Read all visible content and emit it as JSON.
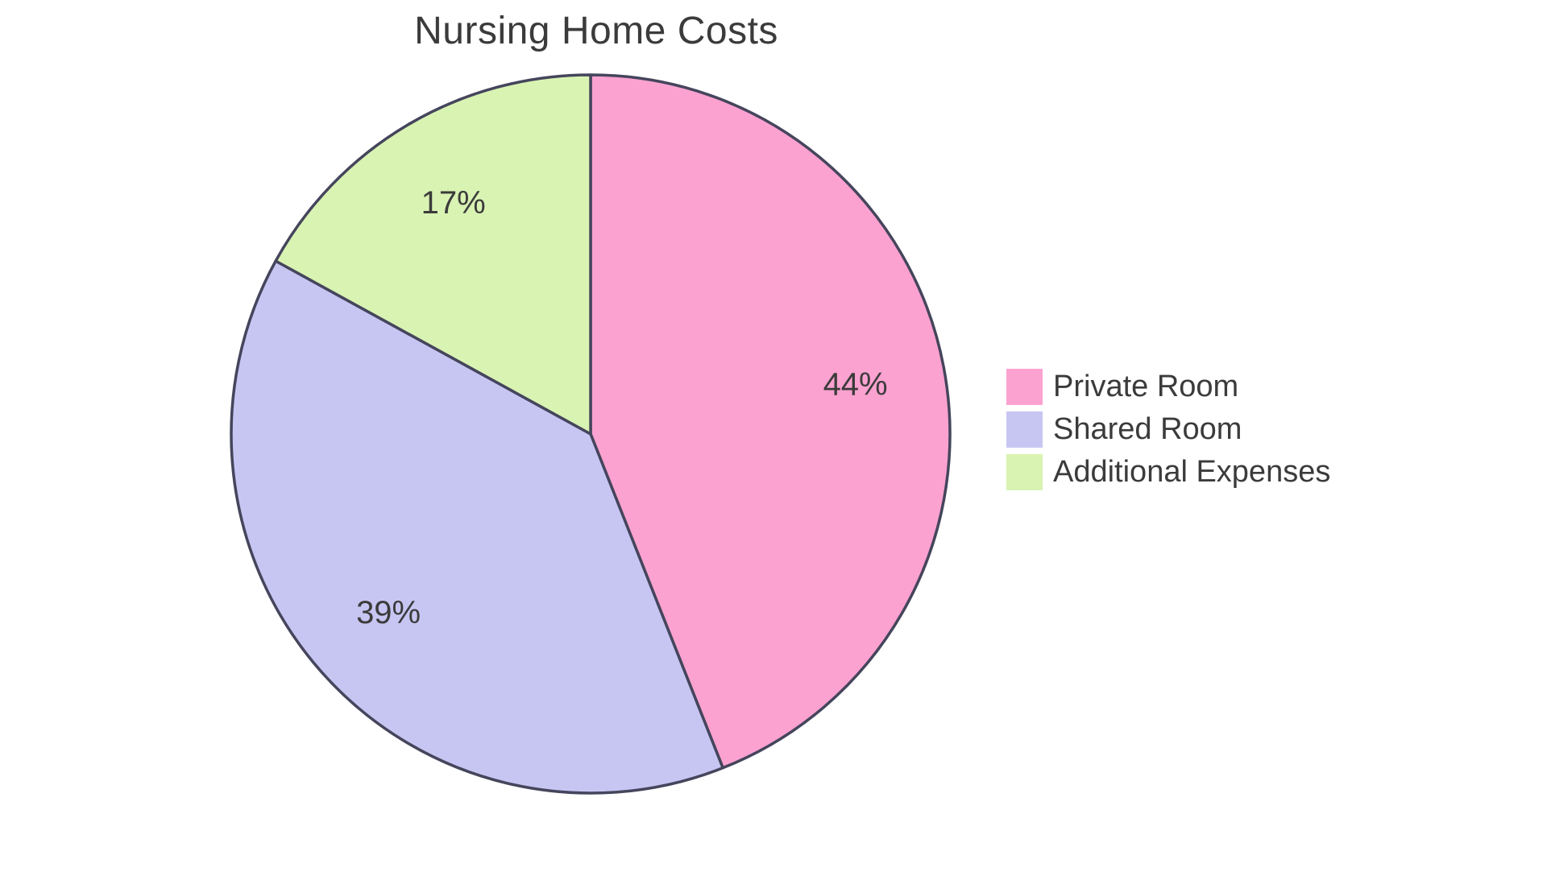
{
  "page": {
    "background": "#FFFFFF"
  },
  "chart_data": {
    "type": "pie",
    "title": "Nursing Home Costs",
    "slices": [
      {
        "label": "Private Room",
        "value": 44,
        "pct_label": "44%",
        "color": "#FBA2D0"
      },
      {
        "label": "Shared Room",
        "value": 39,
        "pct_label": "39%",
        "color": "#C7C6F3"
      },
      {
        "label": "Additional Expenses",
        "value": 17,
        "pct_label": "17%",
        "color": "#D9F3B3"
      }
    ],
    "start_angle": "12-oclock",
    "direction": "clockwise",
    "legend_position": "right",
    "stroke_color": "#45455C",
    "text_color": "#3B3B3B"
  }
}
